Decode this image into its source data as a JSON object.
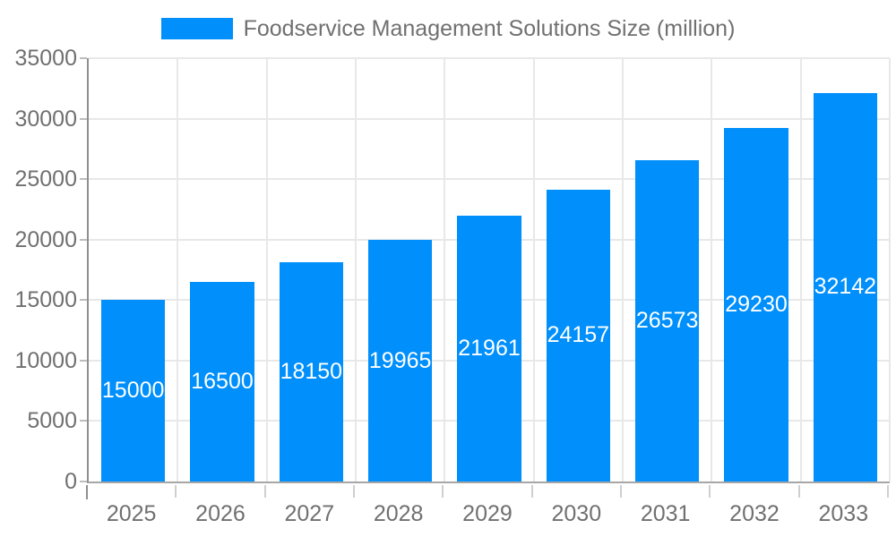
{
  "legend": {
    "label": "Foodservice Management Solutions Size (million)",
    "swatch_color": "#008FFB"
  },
  "chart_data": {
    "type": "bar",
    "title": "Foodservice Management Solutions Size (million)",
    "categories": [
      "2025",
      "2026",
      "2027",
      "2028",
      "2029",
      "2030",
      "2031",
      "2032",
      "2033"
    ],
    "series": [
      {
        "name": "Foodservice Management Solutions Size (million)",
        "values": [
          15000,
          16500,
          18150,
          19965,
          21961,
          24157,
          26573,
          29230,
          32142
        ],
        "color": "#008FFB"
      }
    ],
    "data_labels": [
      "15000",
      "16500",
      "18150",
      "19965",
      "21961",
      "24157",
      "26573",
      "29230",
      "32142"
    ],
    "xlabel": "",
    "ylabel": "",
    "ylim": [
      0,
      35000
    ],
    "y_ticks": [
      0,
      5000,
      10000,
      15000,
      20000,
      25000,
      30000,
      35000
    ],
    "grid": true,
    "legend_position": "top",
    "data_label_color": "#ffffff",
    "axis_label_color": "#707070",
    "grid_color": "#e8e8e8",
    "bar_color": "#008FFB"
  }
}
